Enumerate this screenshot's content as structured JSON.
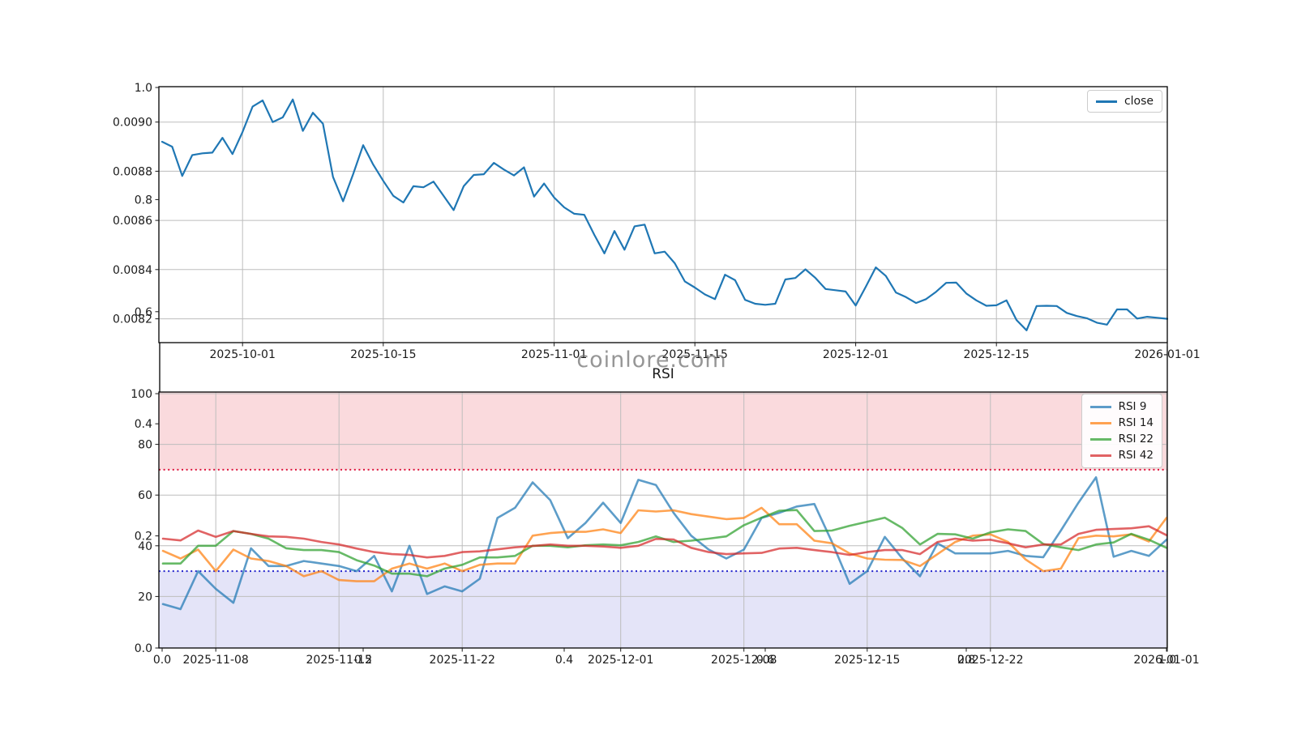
{
  "watermark": "coinlore.com",
  "overlay_axis": {
    "x_ticks": [
      "0.0",
      "0.2",
      "0.4",
      "0.6",
      "0.8",
      "1.0"
    ],
    "y_ticks": [
      "1.0",
      "0.8",
      "0.6",
      "0.4",
      "0.2",
      "0.0"
    ]
  },
  "chart_data": [
    {
      "type": "line",
      "name": "price-close",
      "legend_position": "upper right",
      "grid": true,
      "ylim": [
        0.008103,
        0.009144
      ],
      "series": [
        {
          "name": "close",
          "color": "#1f77b4",
          "values": [
            0.00892,
            0.0089,
            0.008781,
            0.008866,
            0.008873,
            0.008876,
            0.008936,
            0.00887,
            0.00896,
            0.009063,
            0.009088,
            0.009,
            0.009019,
            0.009092,
            0.008964,
            0.009038,
            0.008993,
            0.008777,
            0.008678,
            0.008788,
            0.008906,
            0.008827,
            0.008761,
            0.0087,
            0.008673,
            0.008739,
            0.008735,
            0.008758,
            0.0087,
            0.008642,
            0.008739,
            0.008785,
            0.008788,
            0.008834,
            0.008807,
            0.008783,
            0.008816,
            0.008697,
            0.00875,
            0.008693,
            0.008653,
            0.008627,
            0.008623,
            0.008541,
            0.008466,
            0.008557,
            0.008481,
            0.008576,
            0.008583,
            0.008466,
            0.008473,
            0.008426,
            0.008352,
            0.008327,
            0.008299,
            0.00828,
            0.008379,
            0.008357,
            0.008277,
            0.008261,
            0.008257,
            0.008261,
            0.00836,
            0.008366,
            0.008401,
            0.008366,
            0.008321,
            0.008316,
            0.008311,
            0.008254,
            0.00833,
            0.008409,
            0.008374,
            0.008307,
            0.008288,
            0.008264,
            0.00828,
            0.00831,
            0.008346,
            0.008347,
            0.008303,
            0.008275,
            0.008253,
            0.008255,
            0.008275,
            0.008195,
            0.008153,
            0.008252,
            0.008253,
            0.008252,
            0.008224,
            0.008211,
            0.008202,
            0.008184,
            0.008176,
            0.008238,
            0.008238,
            0.008201,
            0.008208,
            0.008204,
            0.0082
          ]
        }
      ],
      "x_ticks": [
        {
          "label": "2025-10-01",
          "i": 8
        },
        {
          "label": "2025-10-15",
          "i": 22
        },
        {
          "label": "2025-11-01",
          "i": 39
        },
        {
          "label": "2025-11-15",
          "i": 53
        },
        {
          "label": "2025-12-01",
          "i": 69
        },
        {
          "label": "2025-12-15",
          "i": 83
        },
        {
          "label": "2026-01-01",
          "i": 100
        }
      ],
      "y_ticks": [
        {
          "label": "0.0082",
          "v": 0.0082
        },
        {
          "label": "0.0084",
          "v": 0.0084
        },
        {
          "label": "0.0086",
          "v": 0.0086
        },
        {
          "label": "0.0088",
          "v": 0.0088
        },
        {
          "label": "0.0090",
          "v": 0.009
        }
      ]
    },
    {
      "type": "line",
      "name": "rsi",
      "title": "RSI",
      "legend_position": "upper right",
      "grid": true,
      "ylim": [
        0,
        100.6
      ],
      "bands": [
        {
          "from": 70,
          "to": 100,
          "color": "#fadadd"
        },
        {
          "from": 0,
          "to": 30,
          "color": "#e4e4f8"
        }
      ],
      "hlines": [
        {
          "v": 70,
          "color": "#dc143c"
        },
        {
          "v": 30,
          "color": "#2020cc"
        }
      ],
      "series": [
        {
          "name": "RSI 9",
          "color": "#1f77b4",
          "values": [
            17,
            15,
            30,
            23,
            17.5,
            39,
            32,
            32,
            34,
            33,
            32,
            30,
            36,
            22,
            40,
            21,
            24,
            22,
            27,
            51,
            55,
            65,
            58,
            43,
            49,
            57,
            49,
            66,
            64,
            53,
            44,
            38.5,
            35,
            38.5,
            51,
            53,
            55.5,
            56.5,
            41.5,
            25,
            30,
            43.5,
            35,
            28,
            41,
            37,
            37,
            37,
            38,
            36,
            35.5,
            46,
            57,
            67,
            35.7,
            38,
            36,
            42.4
          ]
        },
        {
          "name": "RSI 14",
          "color": "#ff7f0e",
          "values": [
            38,
            35,
            38.5,
            30,
            38.5,
            35,
            34,
            32,
            28,
            30,
            26.5,
            26,
            26,
            31,
            33,
            31,
            33,
            30,
            32.5,
            33,
            33,
            44,
            45,
            45.5,
            45.5,
            46.5,
            45,
            54,
            53.5,
            54,
            52.5,
            51.5,
            50.5,
            51,
            55,
            48.5,
            48.5,
            42,
            41,
            37,
            35,
            34.5,
            34.4,
            32,
            36.7,
            41.5,
            44,
            44.5,
            41.5,
            34.6,
            30,
            31,
            43,
            44,
            43.7,
            44.5,
            41.7,
            51
          ]
        },
        {
          "name": "RSI 22",
          "color": "#2ca02c",
          "values": [
            33,
            33,
            40,
            40,
            45.8,
            44.7,
            42.8,
            39,
            38.3,
            38.3,
            37.5,
            34.3,
            32.2,
            29,
            29,
            28,
            31,
            32.5,
            35.4,
            35.4,
            36,
            40,
            40,
            39.4,
            40.2,
            40.5,
            40.2,
            41.5,
            43.7,
            41.5,
            42,
            42.8,
            43.7,
            48.1,
            51.1,
            53.8,
            54.1,
            45.8,
            46,
            47.9,
            49.5,
            51.1,
            47,
            40.5,
            44.7,
            44.5,
            42.8,
            45.3,
            46.5,
            45.8,
            40.7,
            39.4,
            38.3,
            40.5,
            41.3,
            44.7,
            42.4,
            39.2
          ]
        },
        {
          "name": "RSI 42",
          "color": "#d62728",
          "values": [
            42.8,
            42.1,
            46,
            43.5,
            45.8,
            44.7,
            43.7,
            43.5,
            42.8,
            41.5,
            40.5,
            38.9,
            37.5,
            36.7,
            36.4,
            35.4,
            36,
            37.5,
            37.8,
            38.6,
            39.4,
            39.9,
            40.5,
            40,
            40,
            39.7,
            39.2,
            40,
            42.7,
            42.5,
            39.2,
            37.5,
            36.7,
            37,
            37.2,
            38.9,
            39.2,
            38.3,
            37.5,
            36.4,
            37.5,
            38.3,
            38.3,
            36.7,
            41.5,
            42.8,
            42,
            42.4,
            41,
            39.4,
            40.5,
            40.5,
            44.7,
            46.3,
            46.6,
            46.9,
            47.7,
            44.2
          ]
        }
      ],
      "x_ticks": [
        {
          "label": "2025-11-08",
          "i": 3
        },
        {
          "label": "2025-11-15",
          "i": 10
        },
        {
          "label": "2025-11-22",
          "i": 17
        },
        {
          "label": "2025-12-01",
          "i": 26
        },
        {
          "label": "2025-12-08",
          "i": 33
        },
        {
          "label": "2025-12-15",
          "i": 40
        },
        {
          "label": "2025-12-22",
          "i": 47
        },
        {
          "label": "2026-01-01",
          "i": 57
        }
      ],
      "y_ticks": [
        {
          "label": "20",
          "v": 20
        },
        {
          "label": "40",
          "v": 40
        },
        {
          "label": "60",
          "v": 60
        },
        {
          "label": "80",
          "v": 80
        },
        {
          "label": "100",
          "v": 100
        }
      ]
    }
  ]
}
